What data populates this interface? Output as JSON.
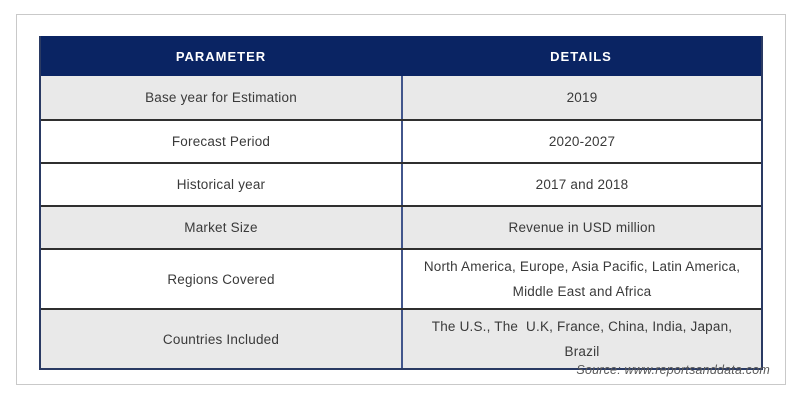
{
  "table": {
    "headers": [
      "PARAMETER",
      "DETAILS"
    ],
    "rows": [
      {
        "parameter": "Base year for Estimation",
        "details": "2019",
        "shaded": true
      },
      {
        "parameter": "Forecast Period",
        "details": "2020-2027",
        "shaded": false
      },
      {
        "parameter": "Historical year",
        "details": "2017 and 2018",
        "shaded": false
      },
      {
        "parameter": "Market Size",
        "details": "Revenue in USD million",
        "shaded": true
      },
      {
        "parameter": "Regions Covered",
        "details": "North America, Europe, Asia Pacific, Latin America,\nMiddle East and Africa",
        "shaded": false
      },
      {
        "parameter": "Countries Included",
        "details": "The U.S., The  U.K, France, China, India, Japan, Brazil",
        "shaded": true
      }
    ]
  },
  "source": {
    "label": "Source: www.reportsanddata.com"
  },
  "colors": {
    "header_bg": "#0a2463",
    "table_border": "#2a3a63",
    "row_separator": "#2f2f2f",
    "column_divider": "#42568c",
    "shaded_row": "#e9e9e9",
    "text": "#3a3a3a",
    "header_text": "#ffffff",
    "source_text": "#595959",
    "card_border": "#c9c9c9"
  }
}
